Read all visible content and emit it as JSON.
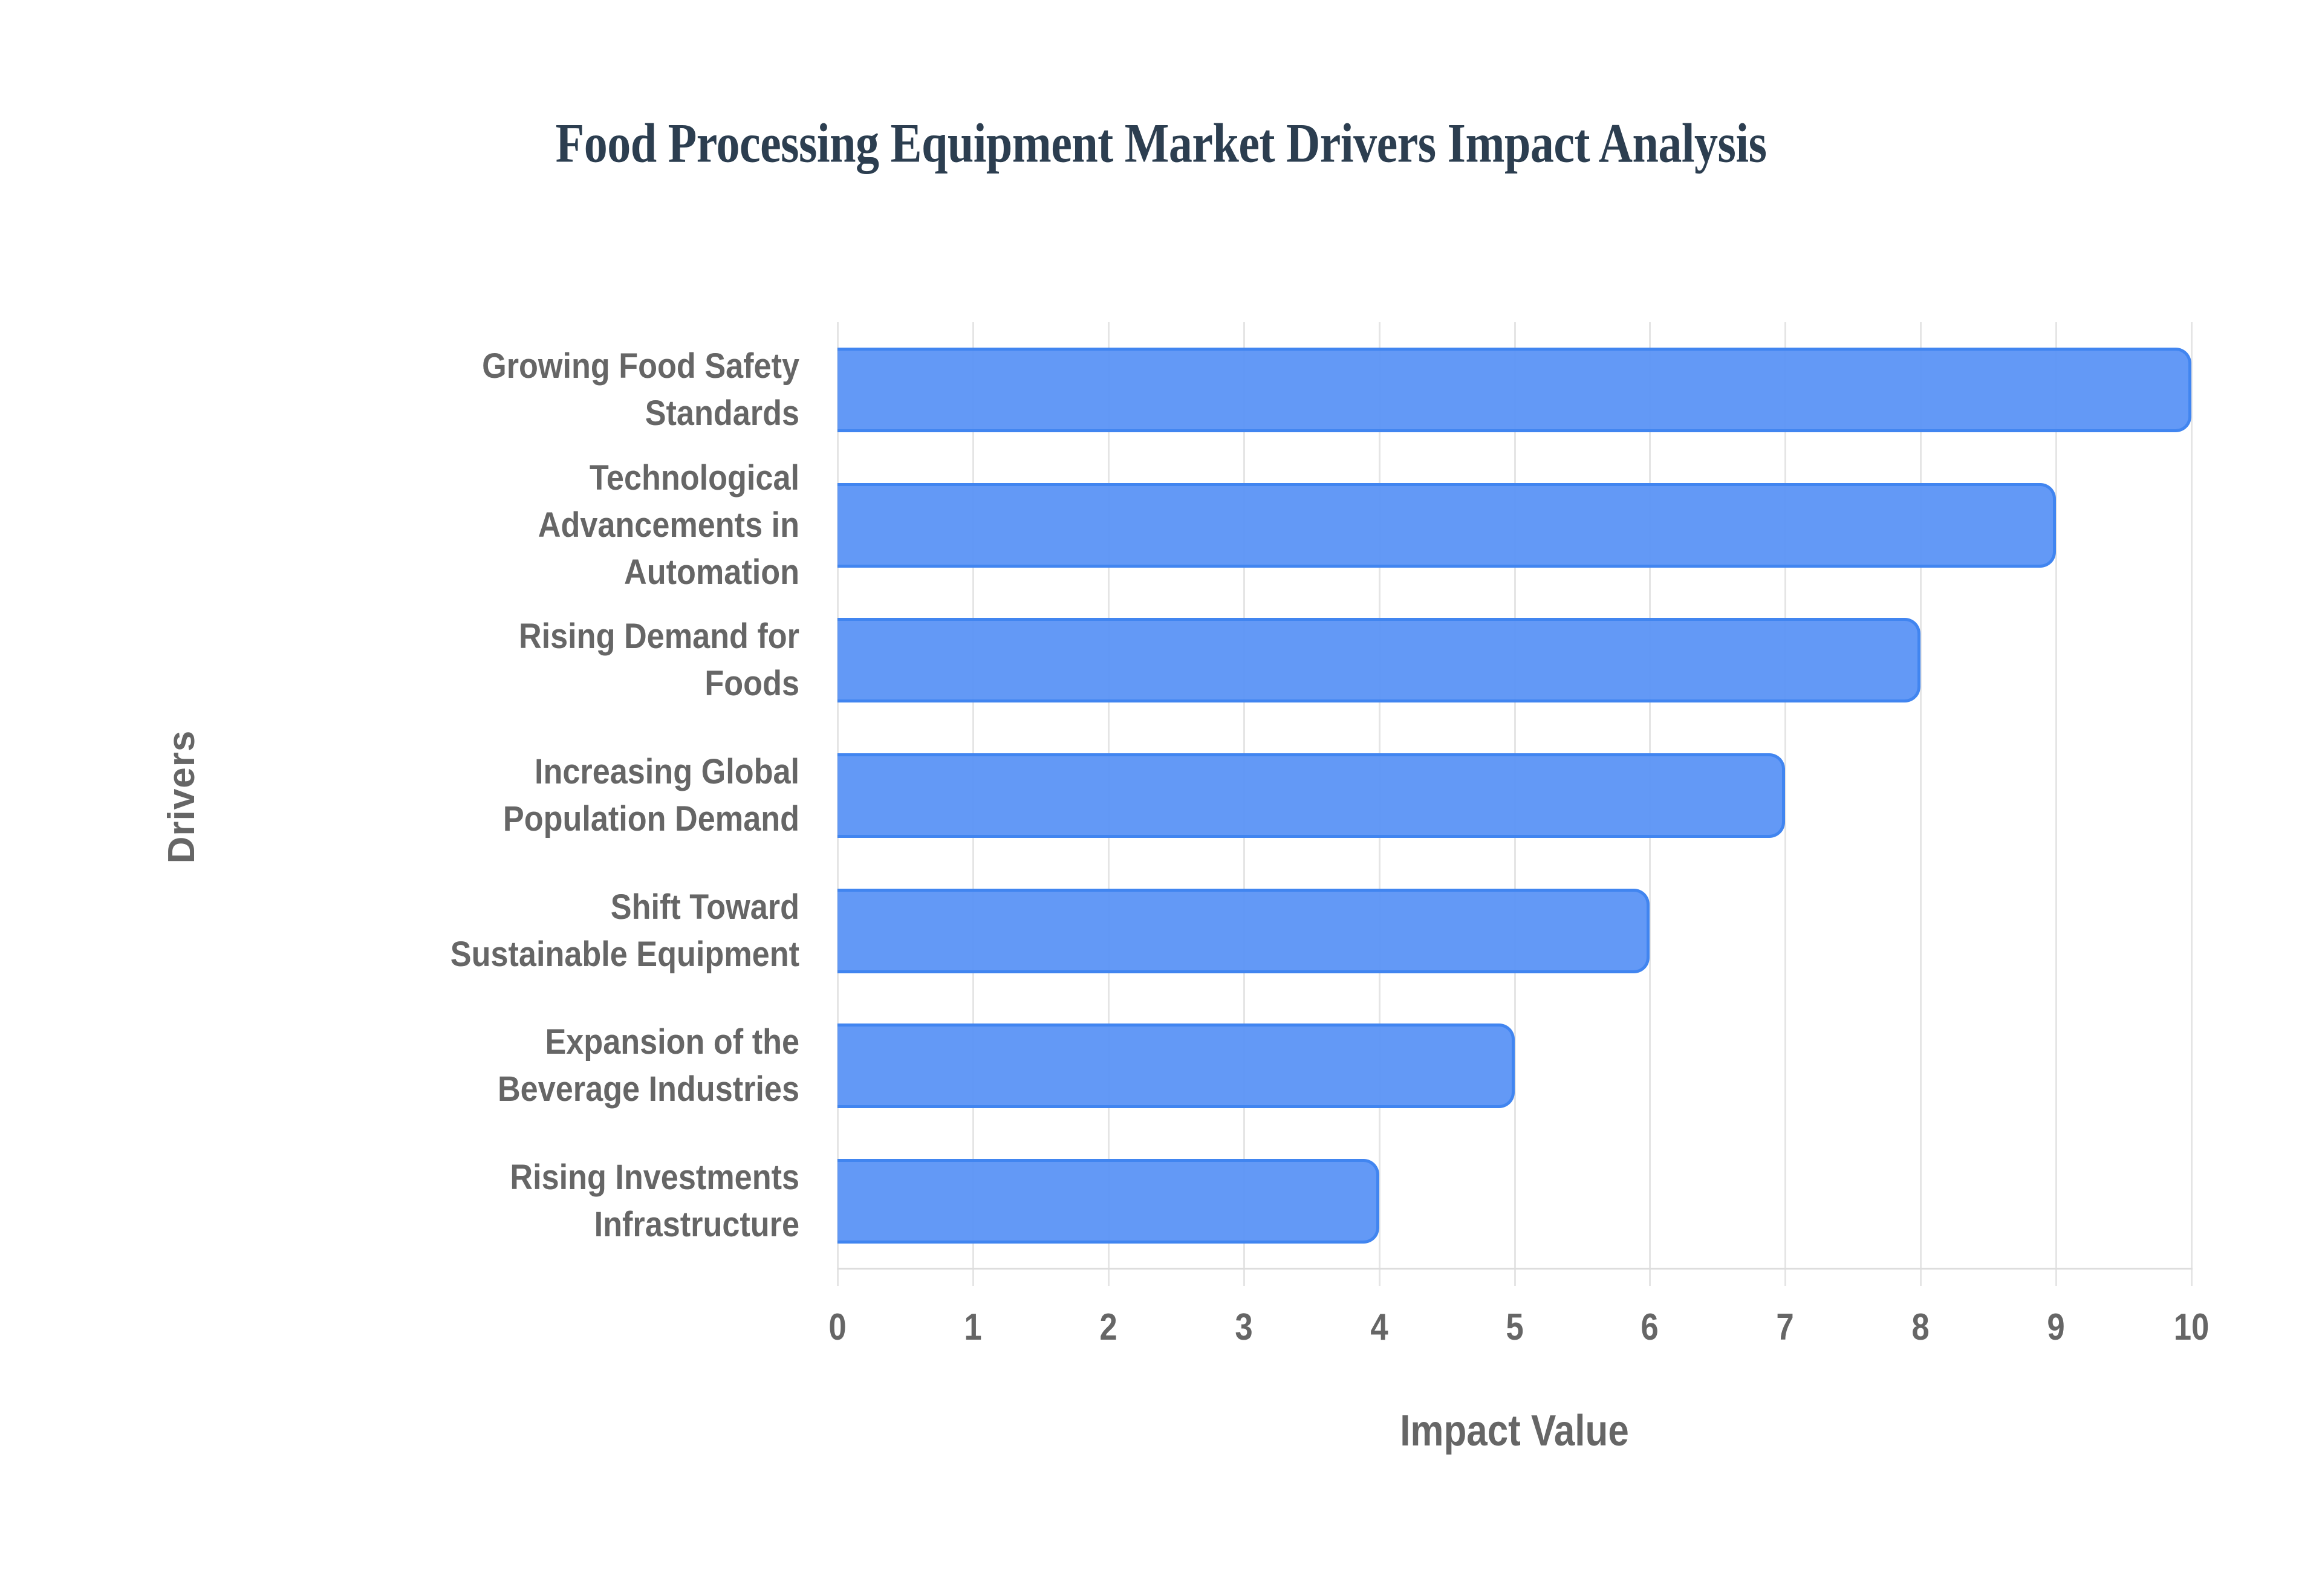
{
  "title": "Food Processing Equipment Market Drivers Impact Analysis",
  "colors": {
    "bar_fill": "#6399f5",
    "bar_border": "#4185f0",
    "title": "#2c3e50",
    "axis_text": "#666666",
    "grid": "#e5e5e5"
  },
  "axes": {
    "x_title": "Impact Value",
    "y_title": "Drivers",
    "x_ticks": [
      "0",
      "1",
      "2",
      "3",
      "4",
      "5",
      "6",
      "7",
      "8",
      "9",
      "10"
    ]
  },
  "bars": [
    {
      "label": "Growing Food Safety Standards",
      "value": 10
    },
    {
      "label": "Technological Advancements in Automation",
      "value": 9
    },
    {
      "label": "Rising Demand for Foods",
      "value": 8
    },
    {
      "label": "Increasing Global Population Demand",
      "value": 7
    },
    {
      "label": "Shift Toward Sustainable Equipment",
      "value": 6
    },
    {
      "label": "Expansion of the Beverage Industries",
      "value": 5
    },
    {
      "label": "Rising Investments Infrastructure",
      "value": 4
    }
  ],
  "chart_data": {
    "type": "bar",
    "orientation": "horizontal",
    "title": "Food Processing Equipment Market Drivers Impact Analysis",
    "categories": [
      "Growing Food Safety Standards",
      "Technological Advancements in Automation",
      "Rising Demand for Foods",
      "Increasing Global Population Demand",
      "Shift Toward Sustainable Equipment",
      "Expansion of the Beverage Industries",
      "Rising Investments Infrastructure"
    ],
    "values": [
      10,
      9,
      8,
      7,
      6,
      5,
      4
    ],
    "xlabel": "Impact Value",
    "ylabel": "Drivers",
    "xlim": [
      0,
      10
    ],
    "x_ticks": [
      0,
      1,
      2,
      3,
      4,
      5,
      6,
      7,
      8,
      9,
      10
    ],
    "grid": {
      "vertical": true,
      "horizontal": false
    },
    "legend": null
  }
}
